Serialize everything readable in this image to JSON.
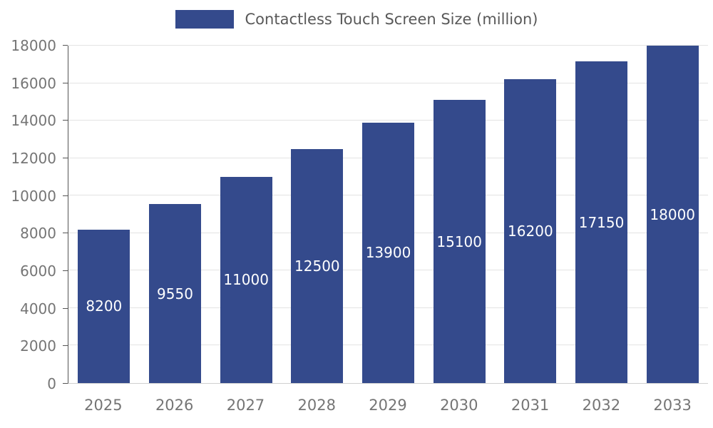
{
  "chart_data": {
    "type": "bar",
    "title": "Contactless Touch Screen Size (million)",
    "categories": [
      "2025",
      "2026",
      "2027",
      "2028",
      "2029",
      "2030",
      "2031",
      "2032",
      "2033"
    ],
    "values": [
      8200,
      9550,
      11000,
      12500,
      13900,
      15100,
      16200,
      17150,
      18000
    ],
    "value_labels": [
      "8200",
      "9550",
      "11000",
      "12500",
      "13900",
      "15100",
      "16200",
      "17150",
      "18000"
    ],
    "xlabel": "",
    "ylabel": "",
    "ylim": [
      0,
      18000
    ],
    "y_ticks": [
      0,
      2000,
      4000,
      6000,
      8000,
      10000,
      12000,
      14000,
      16000,
      18000
    ],
    "grid": true,
    "legend_position": "top",
    "colors": {
      "bar": "#344a8c",
      "bar_label_text": "#ffffff",
      "axis_label": "#757575",
      "grid_line": "#e3e3e3",
      "axis_line": "#555555",
      "legend_text": "#595959",
      "background": "#ffffff"
    }
  }
}
